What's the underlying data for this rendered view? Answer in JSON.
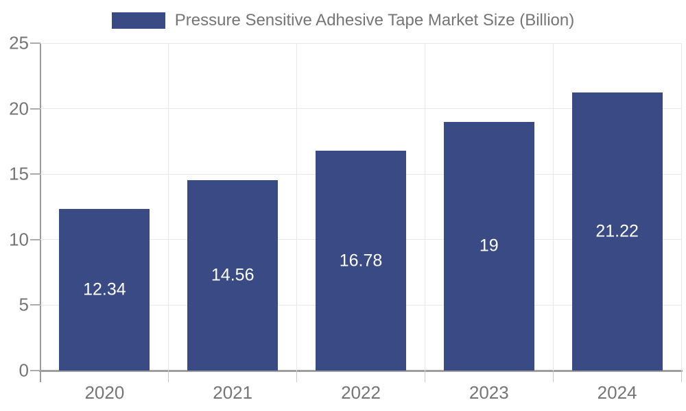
{
  "legend": {
    "label": "Pressure Sensitive Adhesive Tape Market Size (Billion)",
    "swatch_color": "#3A4A84"
  },
  "chart_data": {
    "type": "bar",
    "title": "Pressure Sensitive Adhesive Tape Market Size (Billion)",
    "categories": [
      "2020",
      "2021",
      "2022",
      "2023",
      "2024"
    ],
    "values": [
      12.34,
      14.56,
      16.78,
      19,
      21.22
    ],
    "value_labels": [
      "12.34",
      "14.56",
      "16.78",
      "19",
      "21.22"
    ],
    "xlabel": "",
    "ylabel": "",
    "ylim": [
      0,
      25
    ],
    "yticks": [
      0,
      5,
      10,
      15,
      20,
      25
    ],
    "grid": true,
    "legend_position": "top-center",
    "bar_color": "#3A4A84",
    "value_label_color": "#FFFFFF",
    "tick_label_color": "#757575",
    "gridline_color": "#E8E8E8",
    "axis_line_color": "#9B9B9B",
    "background_color": "#FFFFFF",
    "bar_width_fraction": 0.707
  }
}
